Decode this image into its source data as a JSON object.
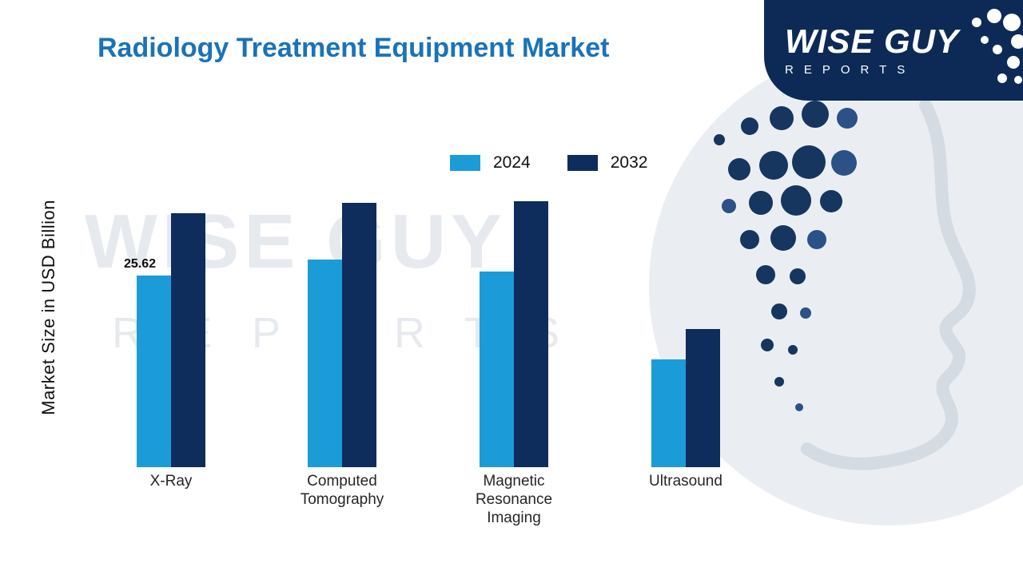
{
  "page": {
    "title": "Radiology Treatment Equipment Market"
  },
  "logo": {
    "brand": "WISE GUY",
    "sub": "REPORTS"
  },
  "watermark": {
    "line1": "WISE GUY",
    "line2": "REPORTS"
  },
  "chart_data": {
    "type": "bar",
    "title": "Radiology Treatment Equipment Market",
    "ylabel": "Market Size in USD Billion",
    "xlabel": "",
    "categories": [
      "X-Ray",
      "Computed Tomography",
      "Magnetic Resonance Imaging",
      "Ultrasound"
    ],
    "series": [
      {
        "name": "2024",
        "color": "#1b9cd9",
        "values": [
          25.62,
          27.8,
          26.2,
          14.4
        ]
      },
      {
        "name": "2032",
        "color": "#0e2c5c",
        "values": [
          33.9,
          35.3,
          35.5,
          18.5
        ]
      }
    ],
    "annotations": [
      {
        "category": "X-Ray",
        "series": "2024",
        "text": "25.62"
      }
    ],
    "legend_position": "top",
    "grid": false,
    "ylim": [
      0,
      38
    ]
  }
}
